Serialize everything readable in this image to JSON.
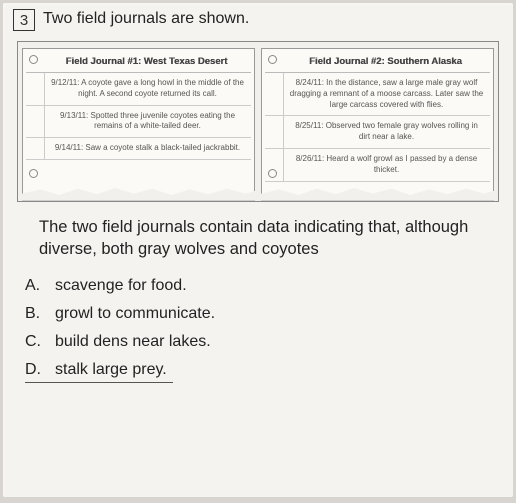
{
  "question": {
    "number": "3",
    "prompt": "Two field journals are shown."
  },
  "journal1": {
    "title": "Field Journal #1: West Texas Desert",
    "entries": [
      "9/12/11: A coyote gave a long howl in the middle of the night. A second coyote returned its call.",
      "9/13/11: Spotted three juvenile coyotes eating the remains of a white-tailed deer.",
      "9/14/11: Saw a coyote stalk a black-tailed jackrabbit."
    ]
  },
  "journal2": {
    "title": "Field Journal #2: Southern Alaska",
    "entries": [
      "8/24/11: In the distance, saw a large male gray wolf dragging a remnant of a moose carcass. Later saw the large carcass covered with flies.",
      "8/25/11: Observed two female gray wolves rolling in dirt near a lake.",
      "8/26/11: Heard a wolf growl as I passed by a dense thicket."
    ]
  },
  "conclusion": "The two field journals contain data indicating that, although diverse, both gray wolves and coyotes",
  "options": {
    "a": {
      "letter": "A.",
      "text": "scavenge for food."
    },
    "b": {
      "letter": "B.",
      "text": "growl to communicate."
    },
    "c": {
      "letter": "C.",
      "text": "build dens near lakes."
    },
    "d": {
      "letter": "D.",
      "text": "stalk large prey."
    }
  }
}
